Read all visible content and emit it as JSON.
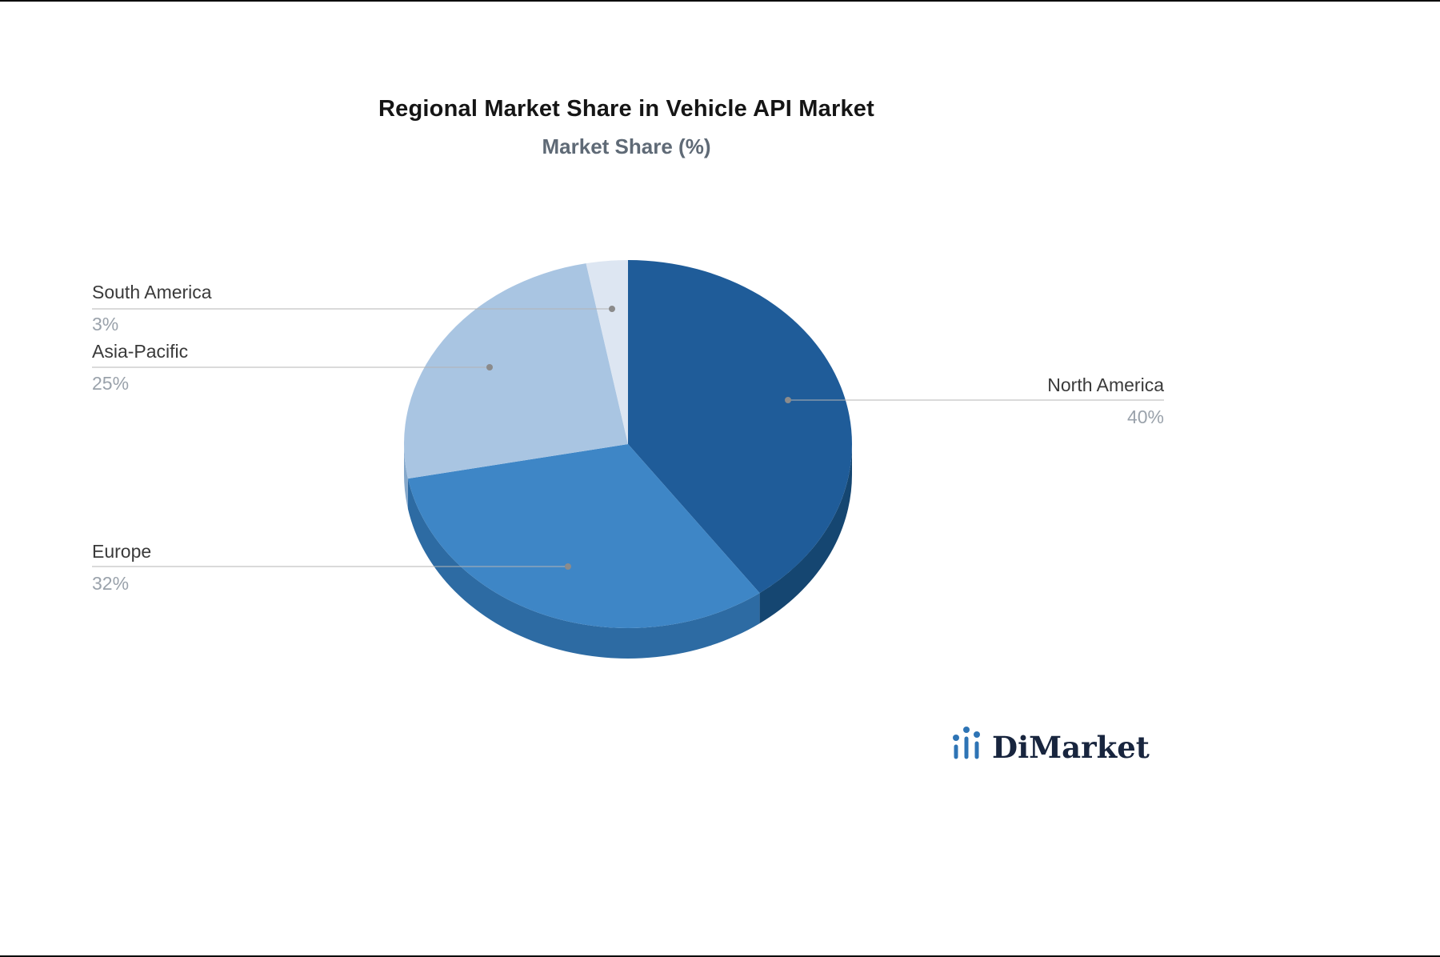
{
  "title": "Regional Market Share in Vehicle API Market",
  "subtitle": "Market Share (%)",
  "logo": {
    "name": "DiMarket"
  },
  "colors": {
    "accent_blue": "#2e74b5",
    "title_text": "#151515",
    "subtitle_text": "#5f6a76",
    "label_text": "#3a3a3a",
    "value_text": "#9aa2ab",
    "leader_line": "#b4b4b4",
    "leader_dot": "#8b8b8b"
  },
  "chart_data": {
    "type": "pie",
    "title": "Regional Market Share in Vehicle API Market",
    "subtitle": "Market Share (%)",
    "unit": "%",
    "start_angle_deg": 0,
    "direction": "clockwise",
    "effect": "3d",
    "legend_position": "none",
    "slices": [
      {
        "label": "North America",
        "value": 40,
        "value_label": "40%",
        "color": "#1f5c99",
        "side_color": "#154671"
      },
      {
        "label": "Europe",
        "value": 32,
        "value_label": "32%",
        "color": "#3e86c6",
        "side_color": "#2d6ba3"
      },
      {
        "label": "Asia-Pacific",
        "value": 25,
        "value_label": "25%",
        "color": "#a9c5e2",
        "side_color": "#85a8cb"
      },
      {
        "label": "South America",
        "value": 3,
        "value_label": "3%",
        "color": "#dde6f2",
        "side_color": "#bac9dd"
      }
    ]
  }
}
